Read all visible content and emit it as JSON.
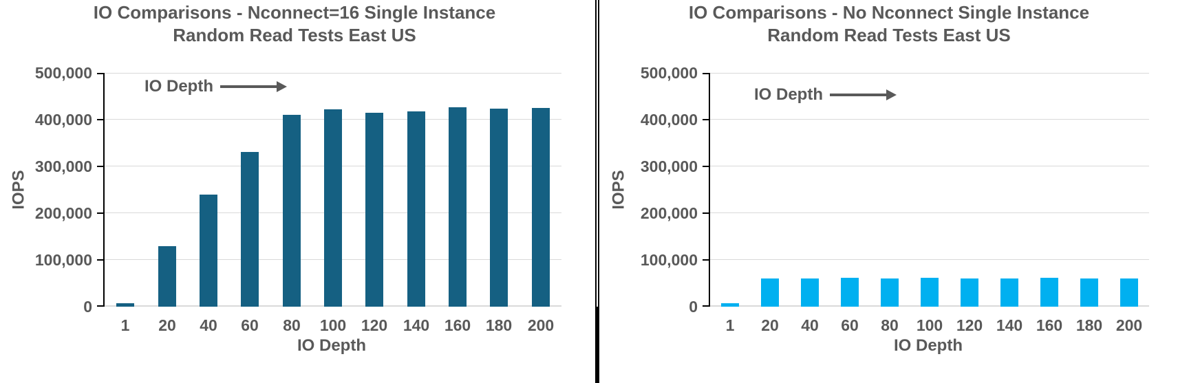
{
  "page": {
    "background": "#ffffff",
    "text_color": "#595959",
    "grid_color": "#d9d9d9",
    "axis_color": "#000000",
    "divider_color": "#000000"
  },
  "chart_data": [
    {
      "type": "bar",
      "title_line1": "IO Comparisons -  Nconnect=16 Single Instance",
      "title_line2": "Random Read Tests East US",
      "xlabel": "IO Depth",
      "ylabel": "IOPS",
      "annotation": "IO Depth",
      "annotation_icon": "right-arrow-icon",
      "categories": [
        "1",
        "20",
        "40",
        "60",
        "80",
        "100",
        "120",
        "140",
        "160",
        "180",
        "200"
      ],
      "values": [
        7000,
        130000,
        240000,
        331000,
        410000,
        422000,
        414000,
        417000,
        426000,
        424000,
        425000
      ],
      "ylim": [
        0,
        500000
      ],
      "ytick_step": 100000,
      "ytick_labels": [
        "0",
        "100,000",
        "200,000",
        "300,000",
        "400,000",
        "500,000"
      ],
      "grid": true,
      "legend": "none",
      "bar_color": "#156082"
    },
    {
      "type": "bar",
      "title_line1": "IO Comparisons - No Nconnect Single Instance",
      "title_line2": "Random Read Tests East US",
      "xlabel": "IO Depth",
      "ylabel": "IOPS",
      "annotation": "IO Depth",
      "annotation_icon": "right-arrow-icon",
      "categories": [
        "1",
        "20",
        "40",
        "60",
        "80",
        "100",
        "120",
        "140",
        "160",
        "180",
        "200"
      ],
      "values": [
        7000,
        60000,
        60000,
        62000,
        60000,
        62000,
        60000,
        60000,
        62000,
        60000,
        60000
      ],
      "ylim": [
        0,
        500000
      ],
      "ytick_step": 100000,
      "ytick_labels": [
        "0",
        "100,000",
        "200,000",
        "300,000",
        "400,000",
        "500,000"
      ],
      "grid": true,
      "legend": "none",
      "bar_color": "#00B0F0"
    }
  ]
}
